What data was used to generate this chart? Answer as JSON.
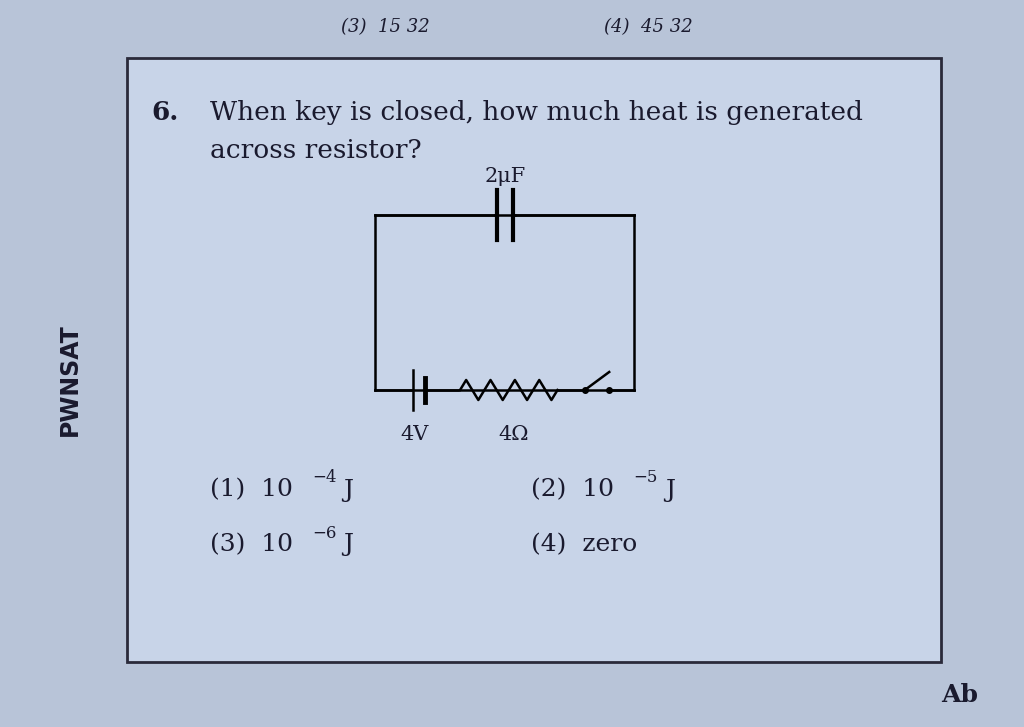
{
  "bg_color": "#b8c4d8",
  "panel_bg": "#c8d4e8",
  "question_number": "6.",
  "question_text_line1": "When key is closed, how much heat is generated",
  "question_text_line2": "across resistor?",
  "capacitor_label": "2μF",
  "battery_label": "4V",
  "resistor_label": "4Ω",
  "side_label": "PWNSAT",
  "top_text_left": "(3)  15 32",
  "top_text_right": "(4)  45 32",
  "bottom_right": "Ab",
  "text_color": "#1a1a2e",
  "border_color": "#2a2a3a",
  "font_size_question": 19,
  "font_size_options": 18,
  "font_size_circuit": 15,
  "font_size_side": 17
}
